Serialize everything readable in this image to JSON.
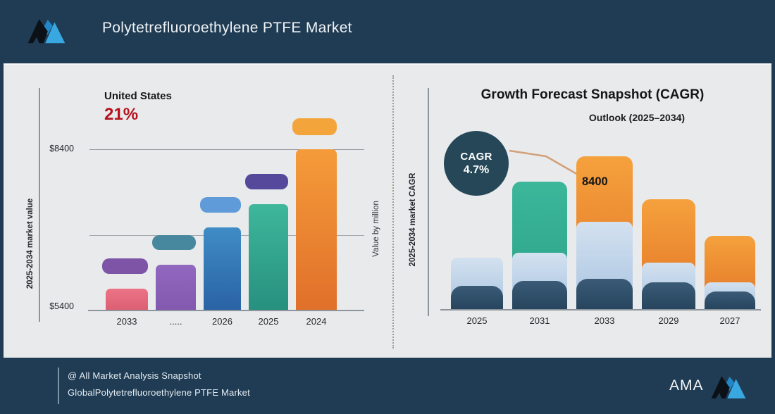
{
  "header": {
    "title": "Polytetrefluoroethylene PTFE Market",
    "brand": "AMA"
  },
  "middle": {
    "divider_label": "Value by million"
  },
  "footer": {
    "line1": "@ All Market Analysis Snapshot",
    "line2": "GlobalPolytetrefluoroethylene PTFE Market",
    "brand": "AMA"
  },
  "colors": {
    "frame_navy": "#203c54",
    "canvas_gray": "#e9eaec",
    "accent_red": "#b5131d",
    "callout_navy": "#254758",
    "connector_tan": "#d2a078"
  },
  "chart_data": [
    {
      "id": "us-market-value",
      "type": "bar",
      "title": "United States",
      "annotation": "21%",
      "ylabel": "2025-2034 market value",
      "y_ticks": [
        {
          "label": "$8400",
          "value": 8400
        },
        {
          "label": "$5400",
          "value": 5400
        }
      ],
      "ylim": [
        5400,
        9100
      ],
      "grid": "horizontal gridlines at 8400, unlabeled midline, baseline at 5400",
      "categories": [
        "2033",
        ".....",
        "2026",
        "2025",
        "2024"
      ],
      "values": [
        5800,
        6240,
        6940,
        7370,
        8400
      ],
      "floating_caps": [
        {
          "from": 6075,
          "to": 6365
        },
        {
          "from": 6520,
          "to": 6795
        },
        {
          "from": 7215,
          "to": 7505
        },
        {
          "from": 7650,
          "to": 7940
        },
        {
          "from": 8660,
          "to": 8980
        }
      ],
      "bar_colors": [
        [
          "#ec7486",
          "#dc5f72"
        ],
        [
          "#9168bf",
          "#8259ae"
        ],
        [
          "#3f8cc6",
          "#2a63a5"
        ],
        [
          "#3eb79b",
          "#27907f"
        ],
        [
          "#f59b3a",
          "#e0702a"
        ]
      ],
      "cap_colors": [
        "#7d54a6",
        "#48889e",
        "#5f9bd8",
        "#56499c",
        "#f3a53b"
      ]
    },
    {
      "id": "growth-forecast-cagr",
      "type": "stacked-bar",
      "title": "Growth Forecast Snapshot (CAGR)",
      "subtitle": "Outlook (2025–2034)",
      "ylabel": "2025-2034 market CAGR",
      "callout": {
        "label": "CAGR",
        "value": "4.7%"
      },
      "bar_annotation": {
        "category": "2033",
        "text": "8400"
      },
      "unit_note": "values scaled so the labeled 2033 bar totals 8400",
      "categories": [
        "2025",
        "2031",
        "2033",
        "2029",
        "2027"
      ],
      "series": [
        {
          "name": "base",
          "role": "base",
          "values": [
            1280,
            1550,
            1660,
            1470,
            970
          ]
        },
        {
          "name": "mid",
          "role": "mid",
          "values": [
            1550,
            1550,
            3140,
            1080,
            500
          ]
        },
        {
          "name": "top",
          "roles": [
            "none",
            "teal",
            "orange",
            "orange",
            "orange"
          ],
          "values": [
            0,
            3900,
            3600,
            3480,
            2560
          ]
        }
      ],
      "palette": {
        "base": [
          "#3a5a76",
          "#27455e"
        ],
        "mid": [
          "#d3e1f0",
          "#a9c4e0"
        ],
        "teal": [
          "#3cb79a",
          "#2aa188"
        ],
        "orange": [
          "#f5a13d",
          "#e27426"
        ]
      }
    }
  ]
}
